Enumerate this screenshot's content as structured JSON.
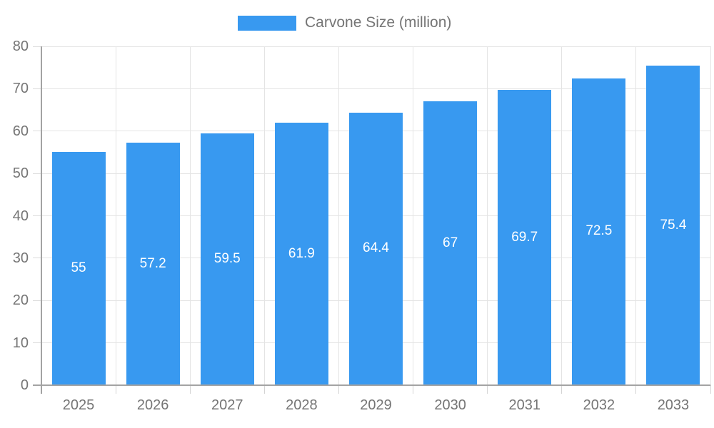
{
  "legend": {
    "label": "Carvone Size (million)"
  },
  "colors": {
    "bar": "#3899f0",
    "grid": "#e4e4e4",
    "axis": "#a3a3a3",
    "tick_text": "#757575",
    "value_text": "#ffffff",
    "background": "#ffffff"
  },
  "chart_data": {
    "type": "bar",
    "title": "Carvone Size (million)",
    "categories": [
      "2025",
      "2026",
      "2027",
      "2028",
      "2029",
      "2030",
      "2031",
      "2032",
      "2033"
    ],
    "series": [
      {
        "name": "Carvone Size (million)",
        "values": [
          55,
          57.2,
          59.5,
          61.9,
          64.4,
          67,
          69.7,
          72.5,
          75.4
        ]
      }
    ],
    "xlabel": "",
    "ylabel": "",
    "ylim": [
      0,
      80
    ],
    "yticks": [
      0,
      10,
      20,
      30,
      40,
      50,
      60,
      70,
      80
    ],
    "grid": true,
    "legend_position": "top-center",
    "value_labels": "inside-center"
  }
}
